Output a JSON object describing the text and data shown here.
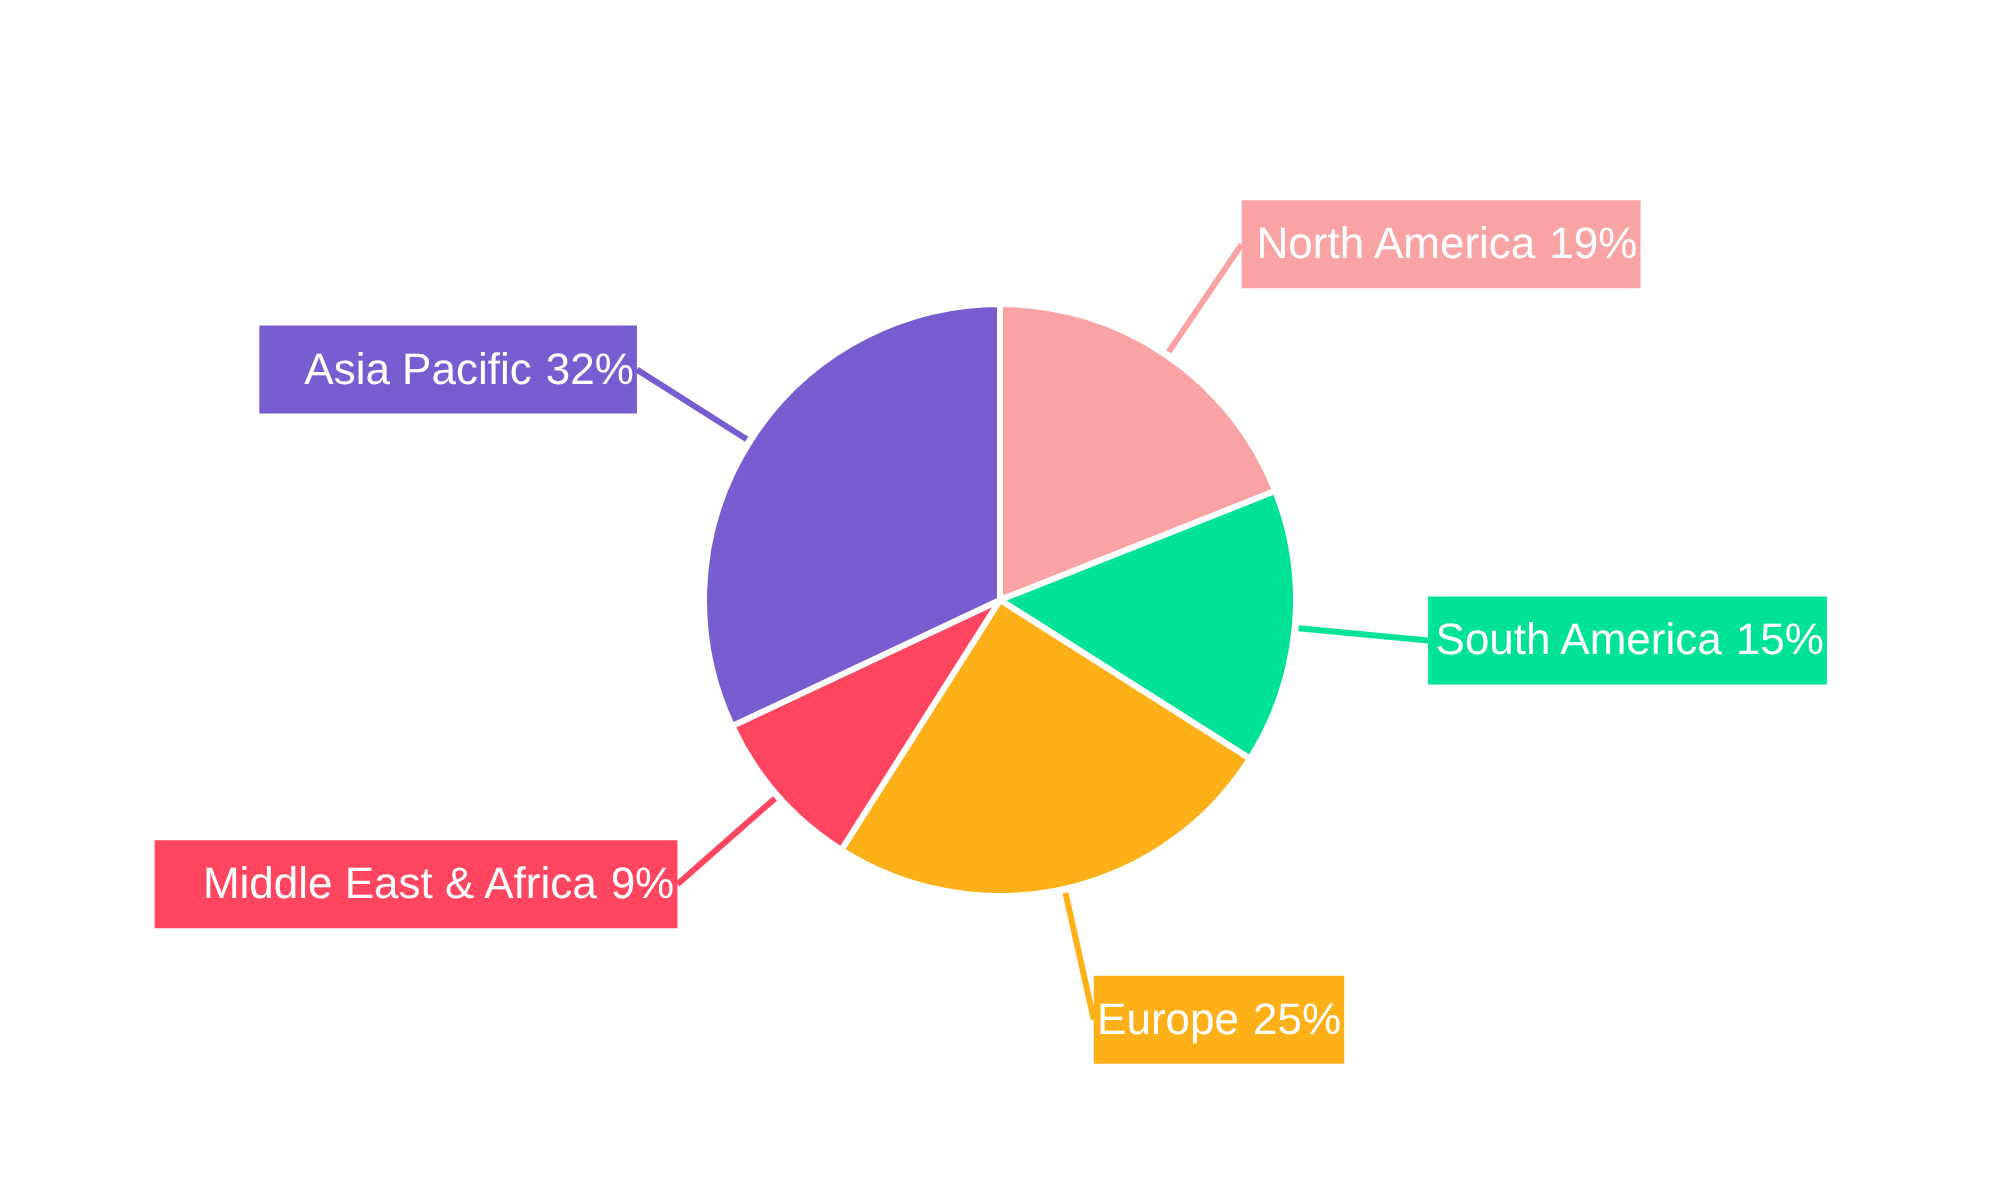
{
  "chart_data": {
    "type": "pie",
    "categories": [
      "North America",
      "South America",
      "Europe",
      "Middle East & Africa",
      "Asia Pacific"
    ],
    "values": [
      19,
      15,
      25,
      9,
      32
    ],
    "colors": [
      "#f9a3a4",
      "#00e396",
      "#feb019",
      "#ff4560",
      "#775dd0"
    ],
    "value_labels": [
      "19%",
      "15%",
      "25%",
      "9%",
      "32%"
    ]
  }
}
